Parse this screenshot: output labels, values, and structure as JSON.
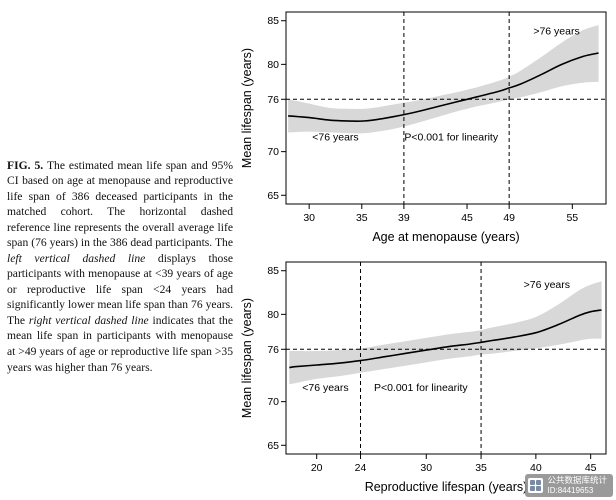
{
  "figure": {
    "caption_segments": [
      {
        "text": "FIG. 5.",
        "bold": true
      },
      {
        "text": "  The estimated mean life span and 95% CI based on age at menopause and reproductive life span of 386 deceased participants in the matched cohort. The horizontal dashed reference line represents the overall average life span (76 years) in the 386 dead participants. The "
      },
      {
        "text": "left vertical dashed line",
        "italic": true
      },
      {
        "text": " displays those participants with menopause at <39 years of age or reproductive life span <24 years had significantly lower mean life span than 76 years. The "
      },
      {
        "text": "right vertical dashed line",
        "italic": true
      },
      {
        "text": " indicates that the mean life span in participants with menopause at >49 years of age or reproductive life span >35 years was higher than 76 years."
      }
    ]
  },
  "watermark": {
    "line1": "公共数据库统计",
    "line2": "ID:84419653"
  },
  "chart_data": [
    {
      "type": "line",
      "title": "",
      "name": "mean-lifespan-vs-age-at-menopause",
      "xlabel": "Age at menopause (years)",
      "ylabel": "Mean lifespan (years)",
      "xlim": [
        27.8,
        58.2
      ],
      "ylim": [
        64,
        86
      ],
      "xticks": [
        30,
        35,
        39,
        45,
        49,
        55
      ],
      "yticks": [
        65,
        70,
        76,
        80,
        85
      ],
      "grid": false,
      "legend": "none",
      "band_color": "#d8d8d8",
      "line_color": "#000000",
      "ref_line_y": 76,
      "ref_lines_x": [
        39,
        49
      ],
      "series_name": "Mean lifespan (95% CI)",
      "x": [
        28,
        30,
        32,
        34,
        35,
        36,
        38,
        40,
        42,
        44,
        45,
        46,
        48,
        49,
        50,
        52,
        54,
        56,
        57.5
      ],
      "mean": [
        74.1,
        73.9,
        73.6,
        73.5,
        73.5,
        73.6,
        74.0,
        74.5,
        75.1,
        75.7,
        76.0,
        76.3,
        76.9,
        77.3,
        77.7,
        78.8,
        80.0,
        80.9,
        81.3
      ],
      "ci_lower": [
        72.2,
        72.3,
        72.2,
        72.1,
        72.1,
        72.2,
        72.6,
        73.2,
        73.9,
        74.6,
        74.9,
        75.2,
        75.7,
        76.0,
        76.2,
        76.8,
        77.5,
        77.9,
        78.0
      ],
      "ci_upper": [
        76.0,
        75.5,
        75.0,
        74.9,
        74.9,
        75.0,
        75.4,
        75.8,
        76.3,
        76.8,
        77.1,
        77.4,
        78.1,
        78.6,
        79.2,
        80.8,
        82.5,
        83.9,
        84.5
      ],
      "annotations": [
        {
          "text": "<76 years",
          "x": 32.5,
          "y": 71.3
        },
        {
          "text": "P<0.001 for linearity",
          "x": 43.5,
          "y": 71.3
        },
        {
          "text": ">76 years",
          "x": 53.5,
          "y": 83.4
        }
      ]
    },
    {
      "type": "line",
      "title": "",
      "name": "mean-lifespan-vs-reproductive-lifespan",
      "xlabel": "Reproductive lifespan (years)",
      "ylabel": "Mean lifespan (years)",
      "xlim": [
        17.2,
        46.4
      ],
      "ylim": [
        64,
        86
      ],
      "xticks": [
        20,
        24,
        30,
        35,
        40,
        45
      ],
      "yticks": [
        65,
        70,
        76,
        80,
        85
      ],
      "grid": false,
      "legend": "none",
      "band_color": "#d8d8d8",
      "line_color": "#000000",
      "ref_line_y": 76,
      "ref_lines_x": [
        24,
        35
      ],
      "series_name": "Mean lifespan (95% CI)",
      "x": [
        17.5,
        18,
        20,
        22,
        24,
        26,
        28,
        30,
        32,
        34,
        35,
        36,
        38,
        40,
        42,
        44,
        45,
        46
      ],
      "mean": [
        73.9,
        74.0,
        74.2,
        74.4,
        74.7,
        75.1,
        75.5,
        75.9,
        76.3,
        76.6,
        76.8,
        77.0,
        77.4,
        77.9,
        78.8,
        79.9,
        80.3,
        80.5
      ],
      "ci_lower": [
        72.0,
        72.1,
        72.6,
        72.9,
        73.3,
        73.7,
        74.1,
        74.5,
        74.9,
        75.2,
        75.4,
        75.5,
        75.8,
        76.1,
        76.5,
        77.0,
        77.2,
        77.2
      ],
      "ci_upper": [
        75.8,
        75.8,
        75.8,
        75.9,
        76.1,
        76.5,
        76.9,
        77.3,
        77.7,
        78.0,
        78.2,
        78.5,
        79.0,
        79.7,
        81.1,
        82.8,
        83.4,
        83.8
      ],
      "annotations": [
        {
          "text": "<76 years",
          "x": 20.8,
          "y": 71.2
        },
        {
          "text": "P<0.001 for linearity",
          "x": 29.5,
          "y": 71.2
        },
        {
          "text": ">76 years",
          "x": 41.0,
          "y": 83.0
        }
      ]
    }
  ]
}
